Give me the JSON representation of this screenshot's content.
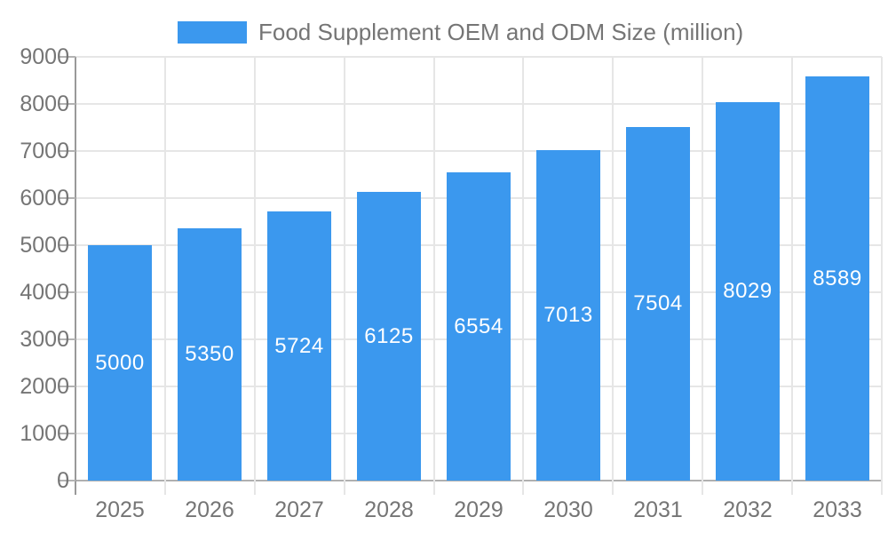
{
  "chart_data": {
    "type": "bar",
    "title": "Food Supplement OEM and ODM Size (million)",
    "categories": [
      "2025",
      "2026",
      "2027",
      "2028",
      "2029",
      "2030",
      "2031",
      "2032",
      "2033"
    ],
    "values": [
      5000,
      5350,
      5724,
      6125,
      6554,
      7013,
      7504,
      8029,
      8589
    ],
    "xlabel": "",
    "ylabel": "",
    "ylim": [
      0,
      9000
    ],
    "ytick_step": 1000,
    "yticks": [
      0,
      1000,
      2000,
      3000,
      4000,
      5000,
      6000,
      7000,
      8000,
      9000
    ],
    "grid": "horizontal-and-vertical",
    "legend_position": "top",
    "value_labels": "inside-center"
  },
  "colors": {
    "bar": "#3b98ee",
    "gridline": "#e6e6e6",
    "y_axis_line": "#999999",
    "x_axis_line": "#b0b0b0",
    "tick": "#b3b3b3",
    "axis_text": "#757575",
    "value_label_text": "#ffffff",
    "background": "#ffffff"
  }
}
